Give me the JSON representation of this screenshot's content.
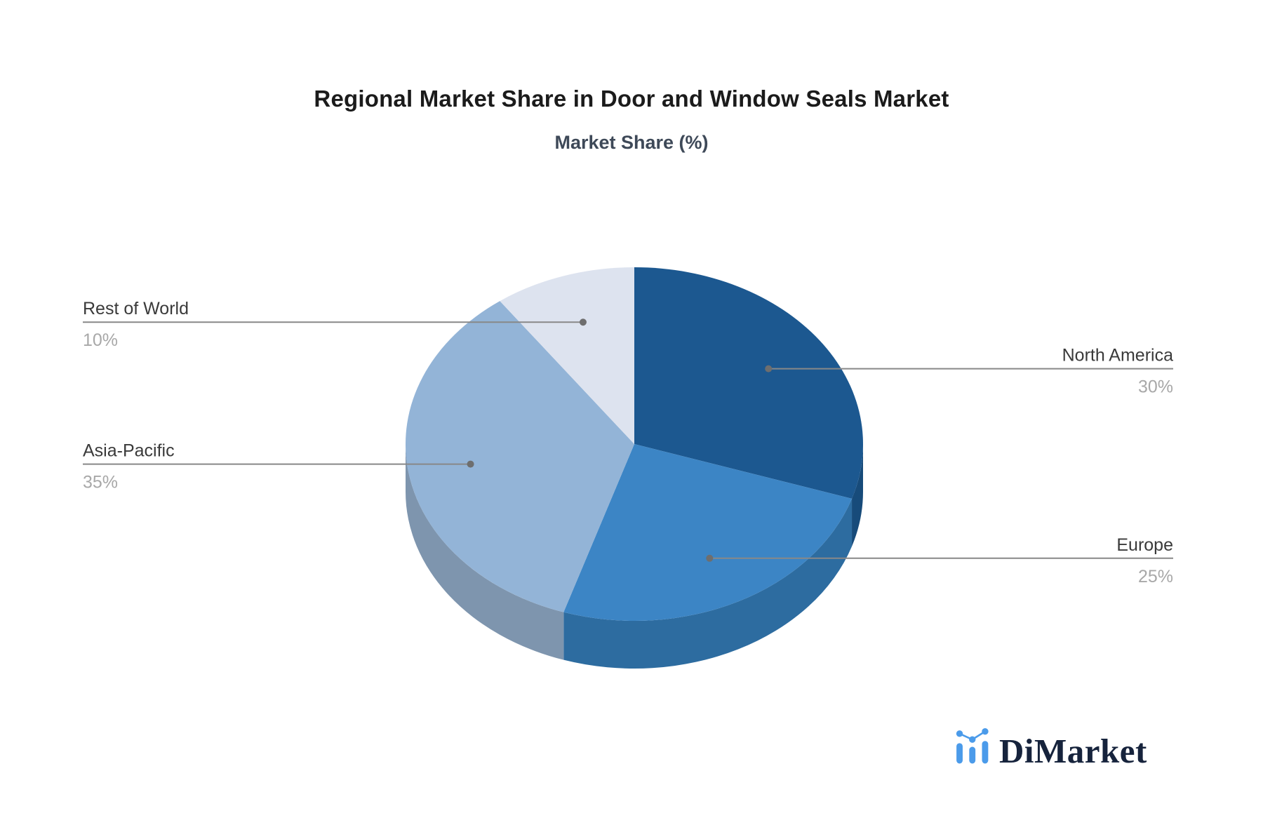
{
  "brand": {
    "name": "DiMarket",
    "icon": "bar-line-chart-icon",
    "icon_color": "#4b9bea",
    "text_color": "#16233c"
  },
  "chart_data": {
    "type": "pie",
    "title": "Regional Market Share in Door and Window Seals Market",
    "subtitle": "Market Share (%)",
    "unit": "%",
    "effect": "3d",
    "start_angle_deg": 0,
    "clockwise": true,
    "legend": "none",
    "slices": [
      {
        "label": "North America",
        "value": 30,
        "color": "#1c5890",
        "side_color": "#174b7a",
        "label_side": "right"
      },
      {
        "label": "Europe",
        "value": 25,
        "color": "#3c85c5",
        "side_color": "#2d6ca0",
        "label_side": "right"
      },
      {
        "label": "Asia-Pacific",
        "value": 35,
        "color": "#93b4d7",
        "side_color": "#7e95ae",
        "label_side": "left"
      },
      {
        "label": "Rest of World",
        "value": 10,
        "color": "#dde3ef",
        "side_color": "#c8d2e2",
        "label_side": "left"
      }
    ],
    "leader_line_color": "#888888",
    "leader_dot_color": "#6e6e6e",
    "label_color": "#3a3a3a",
    "value_color": "#a8a8a8",
    "title_color": "#1b1b1b",
    "subtitle_color": "#3e4958"
  }
}
